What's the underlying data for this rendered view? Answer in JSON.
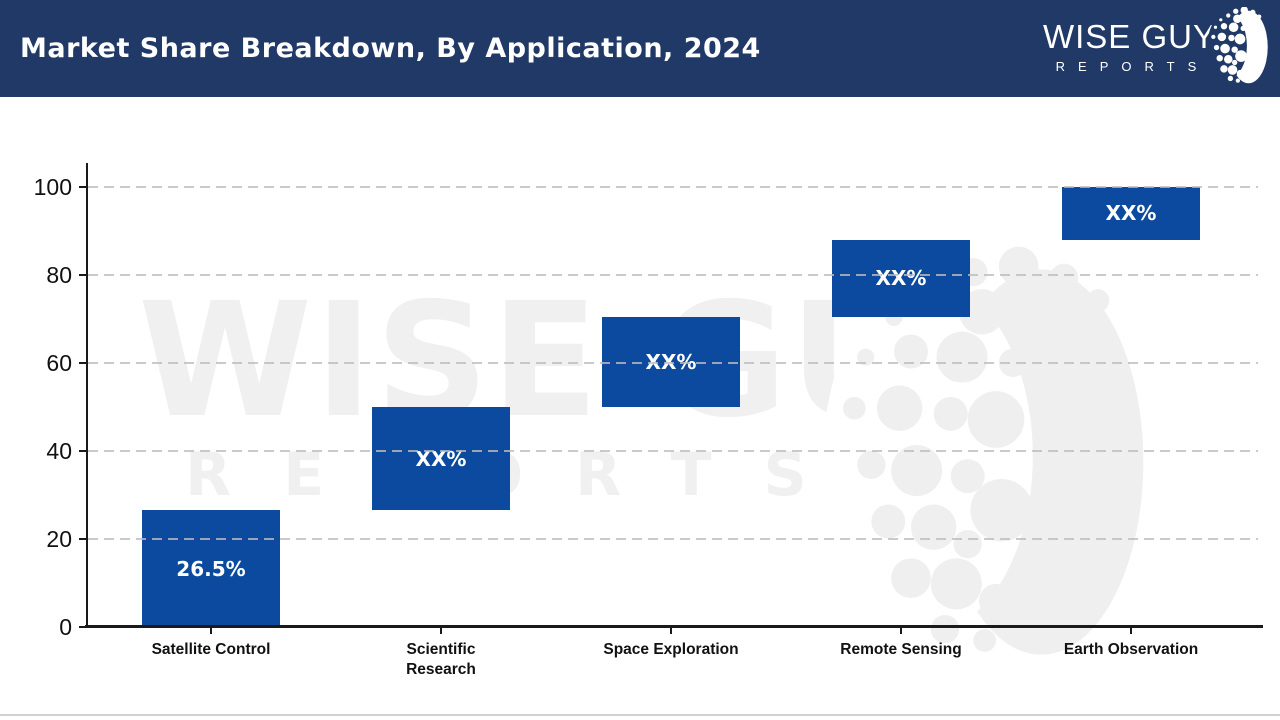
{
  "header": {
    "title": "Market Share Breakdown, By Application, 2024",
    "logo": {
      "line1": "WISE GUY",
      "line2": "REPORTS"
    }
  },
  "watermark": {
    "line1": "WISE GUY",
    "line2": "REPORTS"
  },
  "chart_data": {
    "type": "bar",
    "subtype": "floating-waterfall",
    "title": "Market Share Breakdown, By Application, 2024",
    "categories": [
      "Satellite Control",
      "Scientific\nResearch",
      "Space Exploration",
      "Remote Sensing",
      "Earth Observation"
    ],
    "segments": [
      {
        "category": "Satellite Control",
        "start": 0,
        "end": 26.5,
        "label": "26.5%"
      },
      {
        "category": "Scientific Research",
        "start": 26.5,
        "end": 50,
        "label": "XX%"
      },
      {
        "category": "Space Exploration",
        "start": 50,
        "end": 70.5,
        "label": "XX%"
      },
      {
        "category": "Remote Sensing",
        "start": 70.5,
        "end": 88,
        "label": "XX%"
      },
      {
        "category": "Earth Observation",
        "start": 88,
        "end": 100,
        "label": "XX%"
      }
    ],
    "yticks": [
      0,
      20,
      40,
      60,
      80,
      100
    ],
    "ylim": [
      0,
      105
    ],
    "grid": "horizontal-dashed",
    "legend": "none",
    "bar_color": "#0b4a9e",
    "bar_label_color": "#ffffff"
  },
  "colors": {
    "header_bg": "#213966",
    "bar": "#0b4a9e",
    "axis": "#1a1a1a",
    "gridline": "#bdbdbd",
    "watermark": "#f0f0f0"
  }
}
